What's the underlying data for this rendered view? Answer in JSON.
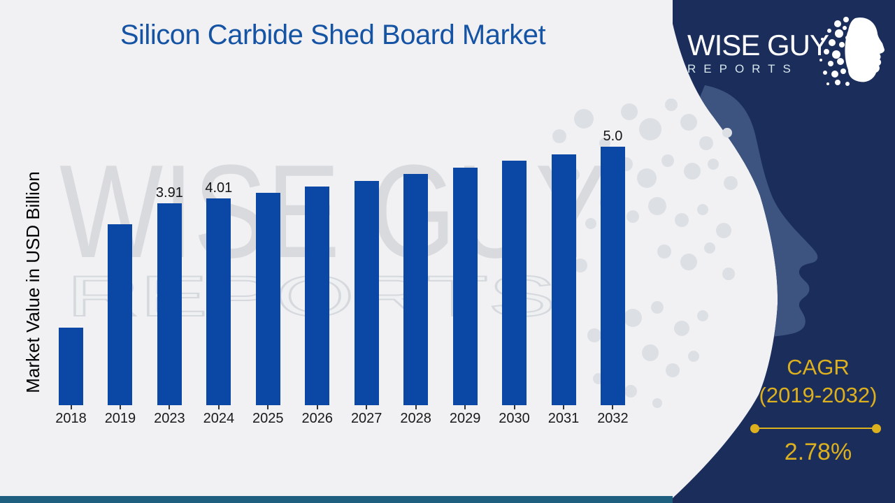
{
  "title": "Silicon Carbide Shed Board Market",
  "logo": {
    "brand_line1": "WISE GUY",
    "brand_line2": "REPORTS"
  },
  "watermark": {
    "line1": "WISE GUY",
    "line2": "REPORTS"
  },
  "cagr": {
    "label": "CAGR",
    "range": "(2019-2032)",
    "value": "2.78%"
  },
  "chart_data": {
    "type": "bar",
    "title": "Silicon Carbide Shed Board Market",
    "xlabel": "",
    "ylabel": "Market Value in USD Billion",
    "categories": [
      "2018",
      "2019",
      "2023",
      "2024",
      "2025",
      "2026",
      "2027",
      "2028",
      "2029",
      "2030",
      "2031",
      "2032"
    ],
    "values": [
      1.5,
      3.5,
      3.91,
      4.01,
      4.12,
      4.24,
      4.35,
      4.48,
      4.6,
      4.73,
      4.86,
      5.0
    ],
    "bar_labels": [
      "",
      "",
      "3.91",
      "4.01",
      "",
      "",
      "",
      "",
      "",
      "",
      "",
      "5.0"
    ],
    "ylim": [
      0,
      5.4
    ],
    "grid": false,
    "legend": null,
    "bar_color": "#0b48a6"
  },
  "colors": {
    "background": "#f1f1f3",
    "panel_navy": "#1b2d5b",
    "title_blue": "#1553a4",
    "accent_gold": "#ddb01e",
    "teal_strip": "#1e5f7f",
    "face_silhouette": "#3d5480",
    "watermark_gray": "#d8dade",
    "axis_text": "#1a1a1a"
  }
}
